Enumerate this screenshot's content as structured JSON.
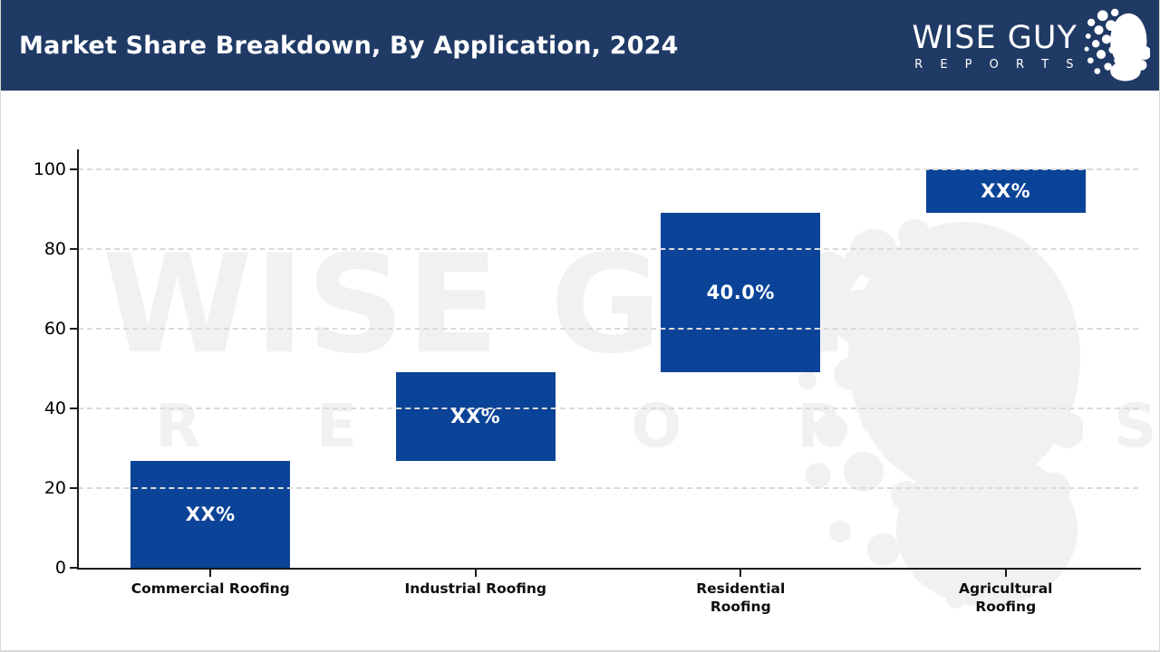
{
  "header": {
    "title": "Market Share Breakdown, By Application, 2024",
    "logo": {
      "primary": "WISE GUY",
      "secondary": "R E P O R T S",
      "head_icon": "dotted-face-profile"
    }
  },
  "watermark": {
    "primary": "WISE GUY",
    "secondary": "R E P O R T S",
    "head_icon": "dotted-face-profile"
  },
  "chart_data": {
    "type": "bar",
    "subtype": "floating-segment-waterfall",
    "title": "Market Share Breakdown, By Application, 2024",
    "categories": [
      "Commercial Roofing",
      "Industrial Roofing",
      "Residential\nRoofing",
      "Agricultural\nRoofing"
    ],
    "segments": [
      {
        "category": "Commercial Roofing",
        "start": 0,
        "end": 26.8,
        "value_label": "XX%"
      },
      {
        "category": "Industrial Roofing",
        "start": 26.8,
        "end": 49.0,
        "value_label": "XX%"
      },
      {
        "category": "Residential Roofing",
        "start": 49.0,
        "end": 89.0,
        "value_label": "40.0%"
      },
      {
        "category": "Agricultural Roofing",
        "start": 89.0,
        "end": 100.0,
        "value_label": "XX%"
      }
    ],
    "xlabel": "",
    "ylabel": "",
    "ylim": [
      0,
      105
    ],
    "yticks": [
      0,
      20,
      40,
      60,
      80,
      100
    ],
    "grid": "horizontal-dashed-above-bars",
    "legend": "none",
    "bar_color": "#0a4397"
  },
  "colors": {
    "header_bg": "#203a66",
    "title_text": "#ffffff",
    "bar": "#0a4397",
    "bar_label": "#ffffff",
    "watermark": "#f0f1f3",
    "grid": "#dadada",
    "axis": "#1a1a1a",
    "page_border": "#d8d8d8"
  }
}
